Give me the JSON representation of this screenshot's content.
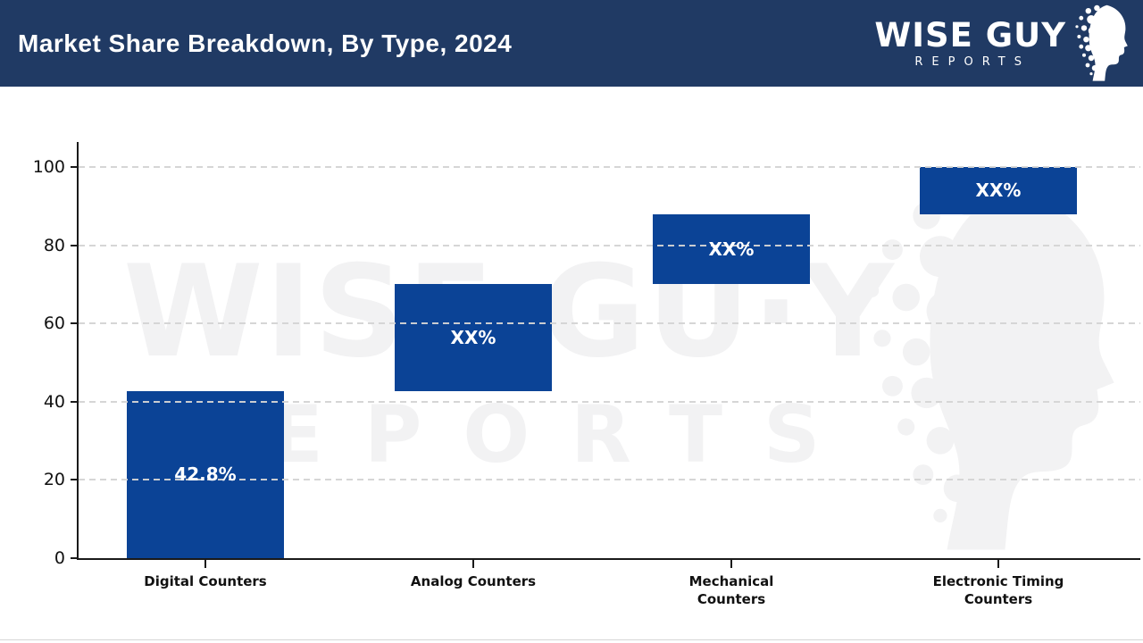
{
  "header": {
    "title": "Market Share Breakdown, By Type, 2024",
    "logo": {
      "line1": "WISE GUY",
      "line2": "REPORTS"
    }
  },
  "watermark": {
    "line1": "WISE GU·Y",
    "line2": "REPORTS"
  },
  "chart_data": {
    "type": "bar",
    "subtype": "floating-waterfall",
    "title": "Market Share Breakdown, By Type, 2024",
    "categories": [
      "Digital Counters",
      "Analog Counters",
      "Mechanical\nCounters",
      "Electronic Timing\nCounters"
    ],
    "segments": [
      {
        "category": "Digital Counters",
        "start": 0,
        "end": 42.8,
        "label": "42.8%"
      },
      {
        "category": "Analog Counters",
        "start": 42.8,
        "end": 70,
        "label": "XX%"
      },
      {
        "category": "Mechanical Counters",
        "start": 70,
        "end": 88,
        "label": "XX%"
      },
      {
        "category": "Electronic Timing Counters",
        "start": 88,
        "end": 100,
        "label": "XX%"
      }
    ],
    "yticks": [
      0,
      20,
      40,
      60,
      80,
      100
    ],
    "ylim": [
      0,
      105
    ],
    "xlabel": "",
    "ylabel": "",
    "grid": "horizontal-dashed-over-bars",
    "legend": "none",
    "bar_color": "#0b4396",
    "bar_label_color": "#ffffff",
    "axis_color": "#1a1a1a",
    "gridline_color": "#d4d4d4"
  }
}
